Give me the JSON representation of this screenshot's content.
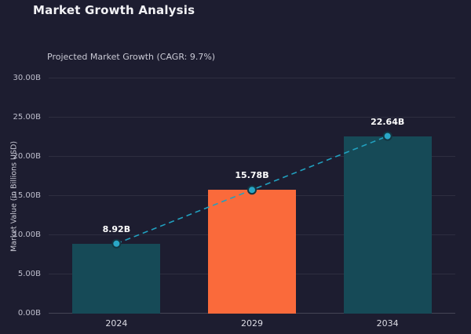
{
  "chart_data": {
    "type": "bar",
    "title": "Market Growth Analysis",
    "subtitle": "Projected Market Growth (CAGR: 9.7%)",
    "ylabel": "Market Value (in Billions USD)",
    "xlabel": "",
    "categories": [
      "2024",
      "2029",
      "2034"
    ],
    "values": [
      8.92,
      15.78,
      22.64
    ],
    "value_labels": [
      "8.92B",
      "15.78B",
      "22.64B"
    ],
    "bar_colors": [
      "#164a57",
      "#fa6a3b",
      "#164a57"
    ],
    "ylim": [
      0,
      30
    ],
    "yticks": [
      {
        "value": 0,
        "label": "0.00B"
      },
      {
        "value": 5,
        "label": "5.00B"
      },
      {
        "value": 10,
        "label": "10.00B"
      },
      {
        "value": 15,
        "label": "15.00B"
      },
      {
        "value": 20,
        "label": "20.00B"
      },
      {
        "value": 25,
        "label": "25.00B"
      },
      {
        "value": 30,
        "label": "30.00B"
      }
    ],
    "grid": true,
    "legend": "none",
    "trend_line": {
      "style": "dashed",
      "color": "#21a0bf",
      "marker_fill": "#2aa7c7",
      "marker_stroke": "#123642"
    },
    "colors": {
      "background": "#1d1d30",
      "title_text": "#f2f2f5",
      "axis_text": "#bfbfcd"
    }
  }
}
